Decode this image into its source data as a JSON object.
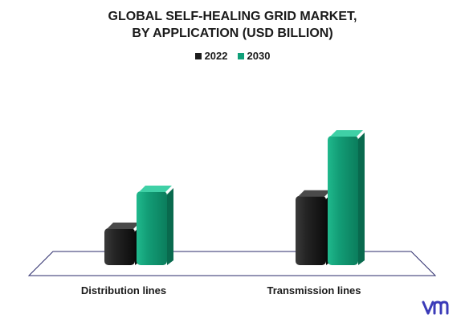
{
  "chart_data": {
    "type": "bar",
    "title": "GLOBAL SELF-HEALING GRID MARKET,",
    "subtitle": "BY APPLICATION (USD BILLION)",
    "categories": [
      "Distribution lines",
      "Transmission lines"
    ],
    "series": [
      {
        "name": "2022",
        "values": [
          0.8,
          1.5
        ],
        "color": "#1c1c1c"
      },
      {
        "name": "2030",
        "values": [
          1.6,
          2.8
        ],
        "color": "#10a079"
      }
    ],
    "ylim": [
      0,
      3.2
    ],
    "grid": false,
    "legend_position": "top-center"
  },
  "logo": {
    "icon": "vmr-logo-icon",
    "color": "#3b3bb8"
  }
}
